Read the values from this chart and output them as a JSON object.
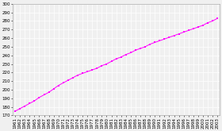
{
  "years": [
    1961,
    1962,
    1963,
    1964,
    1965,
    1966,
    1967,
    1968,
    1969,
    1970,
    1971,
    1972,
    1973,
    1974,
    1975,
    1976,
    1977,
    1978,
    1979,
    1980,
    1981,
    1982,
    1983,
    1984,
    1985,
    1986,
    1987,
    1988,
    1989,
    1990,
    1991,
    1992,
    1993,
    1994,
    1995,
    1996,
    1997,
    1998,
    1999,
    2000,
    2001,
    2002,
    2003
  ],
  "population": [
    175,
    178,
    181,
    184,
    187,
    191,
    194,
    197,
    201,
    205,
    208,
    211,
    214,
    217,
    219,
    221,
    223,
    225,
    228,
    230,
    233,
    236,
    238,
    241,
    243,
    246,
    248,
    250,
    253,
    255,
    257,
    259,
    261,
    263,
    265,
    267,
    269,
    271,
    273,
    275,
    278,
    280,
    283
  ],
  "line_color": "#ff00ff",
  "marker_color": "#ff00ff",
  "marker": "s",
  "markersize": 1.8,
  "linewidth": 0.7,
  "ylim": [
    170,
    300
  ],
  "yticks": [
    170,
    180,
    190,
    200,
    210,
    220,
    230,
    240,
    250,
    260,
    270,
    280,
    290,
    300
  ],
  "background_color": "#f0f0f0",
  "grid_color": "#ffffff",
  "tick_labelsize": 4.0
}
